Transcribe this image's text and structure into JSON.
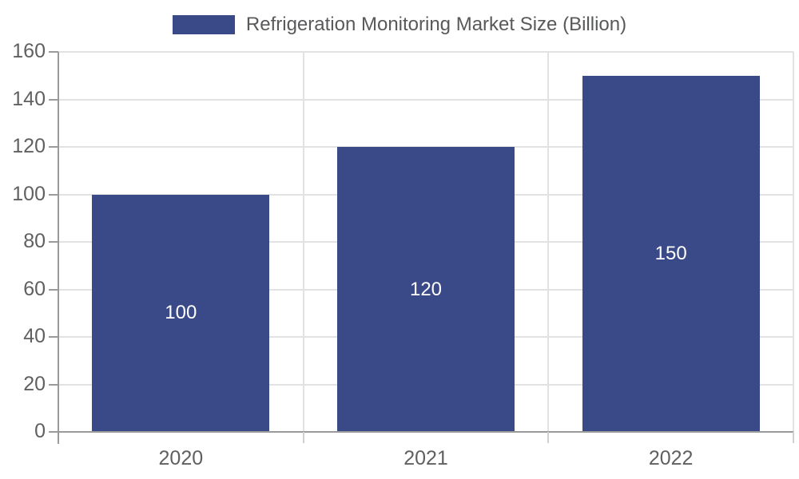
{
  "chart_data": {
    "type": "bar",
    "title": "Refrigeration Monitoring Market Size (Billion)",
    "categories": [
      "2020",
      "2021",
      "2022"
    ],
    "values": [
      100,
      120,
      150
    ],
    "ylim": [
      0,
      160
    ],
    "ytick_step": 20,
    "yticks": [
      0,
      20,
      40,
      60,
      80,
      100,
      120,
      140,
      160
    ],
    "grid": true,
    "legend_position": "top-center",
    "value_label_position": "inside-middle",
    "colors": {
      "bar": "#3A4A88",
      "value_label": "#FFFFFF",
      "axis_text": "#606060",
      "legend_text": "#58595B",
      "grid_line": "#E2E2E2",
      "axis_line": "#9A9A9A",
      "x_tick_line": "#D0D0D0",
      "background": "#FFFFFF"
    }
  }
}
